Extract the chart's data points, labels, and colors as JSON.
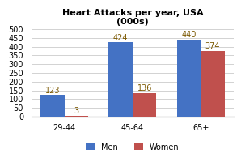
{
  "title_line1": "Heart Attacks per year, USA",
  "title_line2": "(000s)",
  "categories": [
    "29-44",
    "45-64",
    "65+"
  ],
  "men_values": [
    123,
    424,
    440
  ],
  "women_values": [
    3,
    136,
    374
  ],
  "men_color": "#4472C4",
  "women_color": "#C0504D",
  "bar_width": 0.35,
  "ylim": [
    0,
    500
  ],
  "yticks": [
    0,
    50,
    100,
    150,
    200,
    250,
    300,
    350,
    400,
    450,
    500
  ],
  "legend_labels": [
    "Men",
    "Women"
  ],
  "label_fontsize": 7,
  "tick_fontsize": 7,
  "title_fontsize": 8,
  "background_color": "#FFFFFF",
  "grid_color": "#C0C0C0"
}
